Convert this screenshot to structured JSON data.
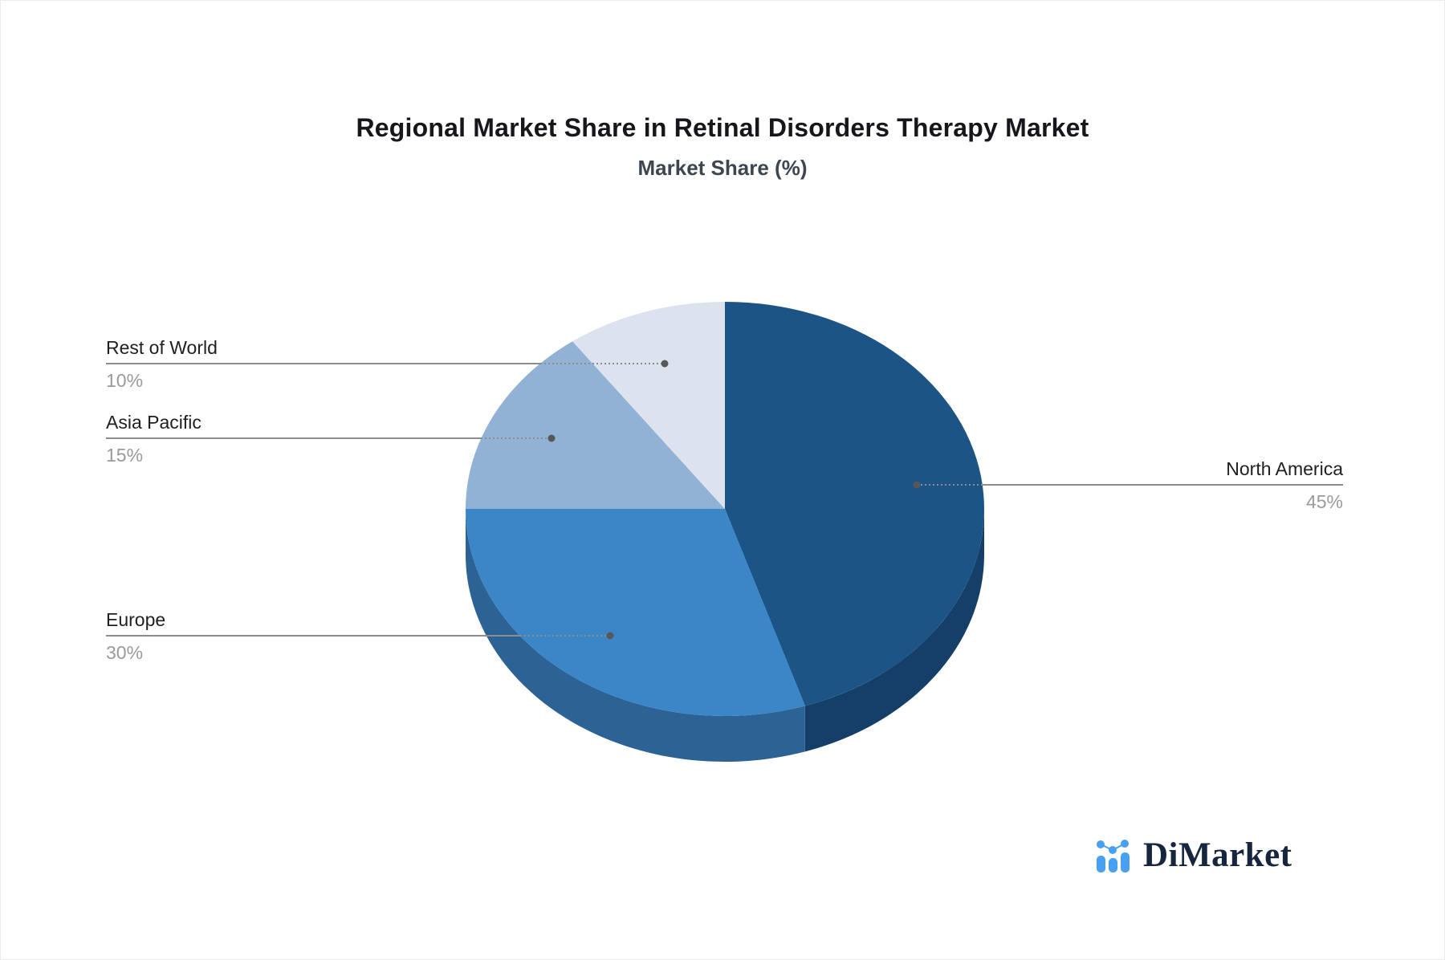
{
  "title": "Regional Market Share in Retinal Disorders Therapy Market",
  "subtitle": "Market Share (%)",
  "brand": {
    "name": "DiMarket",
    "icon": "bar-chart-logo-icon",
    "icon_color": "#47a0f0",
    "text_color": "#17263f"
  },
  "colors": {
    "leader_line": "#8c8c8c",
    "leader_dot": "#575757",
    "label_text": "#1f1f1f",
    "percent_text": "#9a9a9a",
    "background": "#ffffff"
  },
  "chart_data": {
    "type": "pie",
    "style": "3d",
    "unit": "%",
    "start_angle_clockwise_from_top_deg": 0,
    "title": "Regional Market Share in Retinal Disorders Therapy Market",
    "subtitle": "Market Share (%)",
    "legend_position": "none",
    "slices": [
      {
        "label": "North America",
        "value": 45,
        "percent_label": "45%",
        "color": "#1c5585",
        "side_color": "#153f68",
        "label_side": "right"
      },
      {
        "label": "Europe",
        "value": 30,
        "percent_label": "30%",
        "color": "#3a86c7",
        "side_color": "#2d6294",
        "label_side": "left"
      },
      {
        "label": "Asia Pacific",
        "value": 15,
        "percent_label": "15%",
        "color": "#91b2d5",
        "side_color": "#7ea3c9",
        "label_side": "left"
      },
      {
        "label": "Rest of World",
        "value": 10,
        "percent_label": "10%",
        "color": "#dde3ee",
        "side_color": "#c3cddd",
        "label_side": "left"
      }
    ]
  }
}
